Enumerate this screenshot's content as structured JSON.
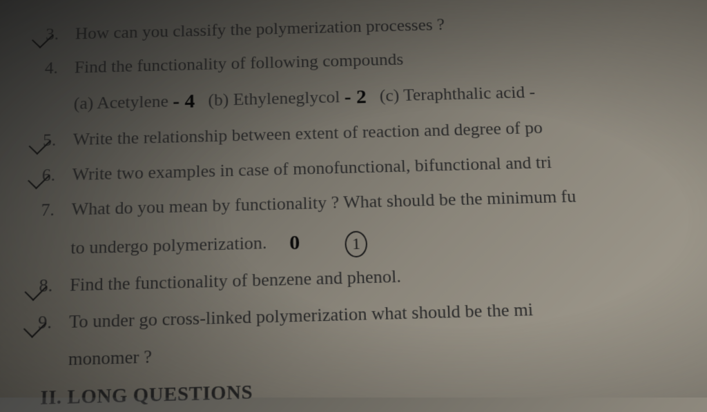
{
  "questions": {
    "q3": {
      "num": "3.",
      "text": "How can you classify the polymerization processes ?"
    },
    "q4": {
      "num": "4.",
      "text": "Find the functionality of following compounds"
    },
    "q4_options": {
      "a": {
        "label": "(a)",
        "text": "Acetylene",
        "annotation": "- 4"
      },
      "b": {
        "label": "(b)",
        "text": "Ethyleneglycol",
        "annotation": "- 2"
      },
      "c": {
        "label": "(c)",
        "text": "Teraphthalic acid",
        "annotation": "-"
      }
    },
    "q5": {
      "num": "5.",
      "text": "Write the relationship between extent of reaction and degree of po"
    },
    "q6": {
      "num": "6.",
      "text": "Write two examples in case of monofunctional, bifunctional and tri"
    },
    "q7": {
      "num": "7.",
      "text": "What do you mean by functionality ? What should be the minimum fu"
    },
    "q7_cont": {
      "text": "to undergo polymerization.",
      "annotation1": "0",
      "annotation2": "1"
    },
    "q8": {
      "num": "8.",
      "text": "Find the functionality of benzene and phenol."
    },
    "q9": {
      "num": "9.",
      "text": "To under go cross-linked polymerization what should be the mi"
    },
    "q9_cont": {
      "text": "monomer ?"
    }
  },
  "section_heading": "II.  LONG QUESTIONS",
  "colors": {
    "text": "#2a2a2a",
    "handwritten": "#0a0a0a",
    "bg_dark": "#4a4a48",
    "bg_light": "#a59f92"
  },
  "typography": {
    "body_fontsize": 26,
    "heading_fontsize": 28,
    "font_family": "Georgia, Times New Roman, serif"
  }
}
